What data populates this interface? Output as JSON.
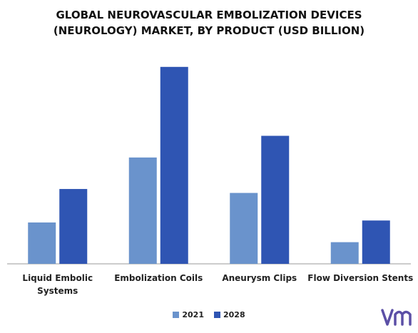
{
  "colors": {
    "2021": "#6a93cc",
    "2028": "#2f55b3",
    "axis": "#999999",
    "logo": "#5b4fa6"
  },
  "chart_data": {
    "type": "bar",
    "title_lines": [
      "GLOBAL NEUROVASCULAR EMBOLIZATION DEVICES",
      "(NEUROLOGY) MARKET, BY PRODUCT (USD BILLION)"
    ],
    "categories": [
      [
        "Liquid Embolic",
        "Systems"
      ],
      [
        "Embolization Coils"
      ],
      [
        "Aneurysm Clips"
      ],
      [
        "Flow Diversion Stents"
      ]
    ],
    "series": [
      {
        "name": "2021",
        "values": [
          0.21,
          0.54,
          0.36,
          0.11
        ]
      },
      {
        "name": "2028",
        "values": [
          0.38,
          1.0,
          0.65,
          0.22
        ]
      }
    ],
    "ylim": [
      0,
      1.05
    ],
    "grid": false,
    "legend_position": "bottom-center",
    "yaxis_labels_shown": false
  },
  "logo_label": "MRFR"
}
